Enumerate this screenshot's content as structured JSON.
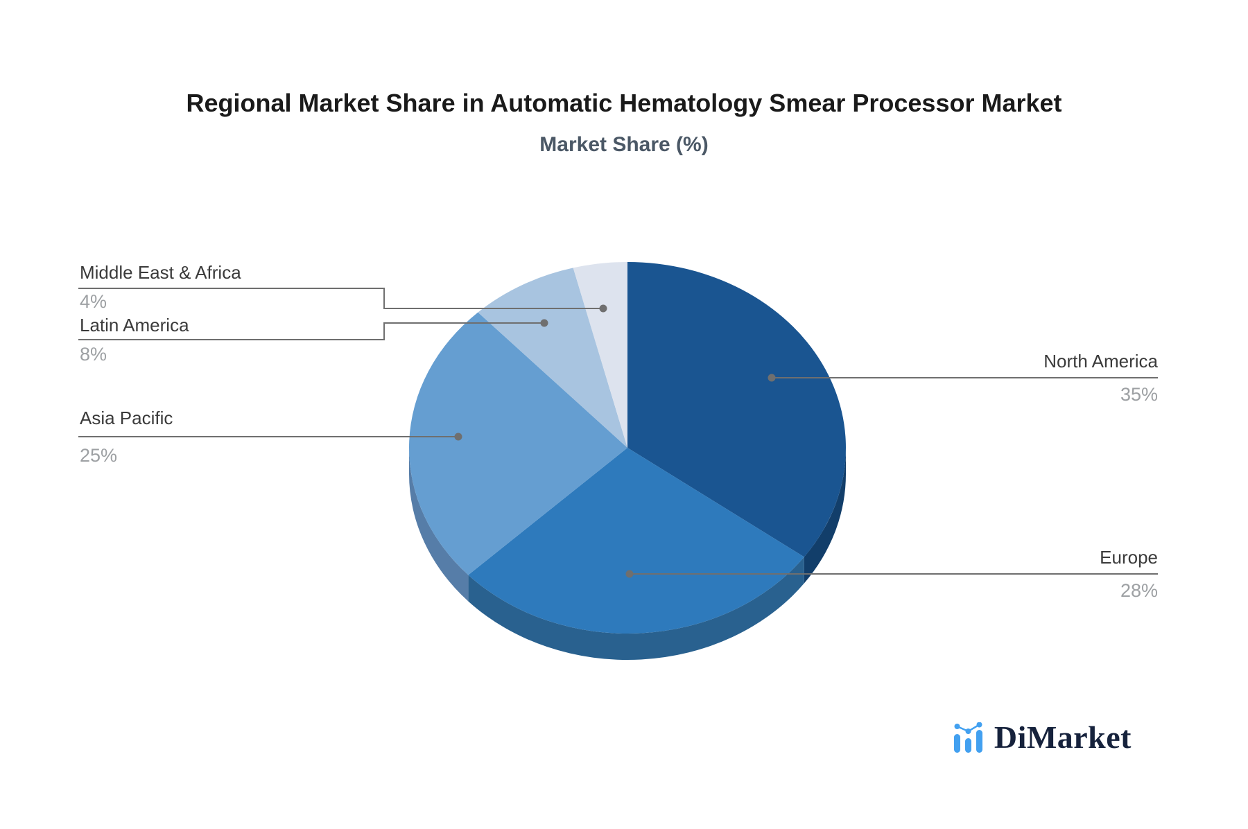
{
  "header": {
    "title": "Regional Market Share in Automatic Hematology Smear Processor Market",
    "subtitle": "Market Share (%)"
  },
  "chart_data": {
    "type": "pie",
    "style": "3d",
    "title": "Regional Market Share in Automatic Hematology Smear Processor Market",
    "subtitle": "Market Share (%)",
    "unit": "%",
    "start_angle": "12-o-clock",
    "direction": "clockwise",
    "legend_position": "none",
    "categories": [
      "North America",
      "Europe",
      "Asia Pacific",
      "Latin America",
      "Middle East & Africa"
    ],
    "values": [
      35,
      28,
      25,
      8,
      4
    ],
    "percent_labels": [
      "35%",
      "28%",
      "25%",
      "8%",
      "4%"
    ],
    "slice_colors": [
      "#1a5591",
      "#2e7abc",
      "#659ed1",
      "#a8c4e0",
      "#dde3ee"
    ],
    "slice_side_colors": [
      "#123e6a",
      "#29618f",
      "#567da8",
      "#8fadcc",
      "#c2cbdc"
    ],
    "connector_color": "#6f6f6f",
    "label_color": "#3a3a3a",
    "percent_label_color": "#9da0a3"
  },
  "brand": {
    "name": "DiMarket",
    "icon": "bar-chart-logo-icon",
    "text_color": "#16223c",
    "icon_color": "#42a0f0"
  }
}
